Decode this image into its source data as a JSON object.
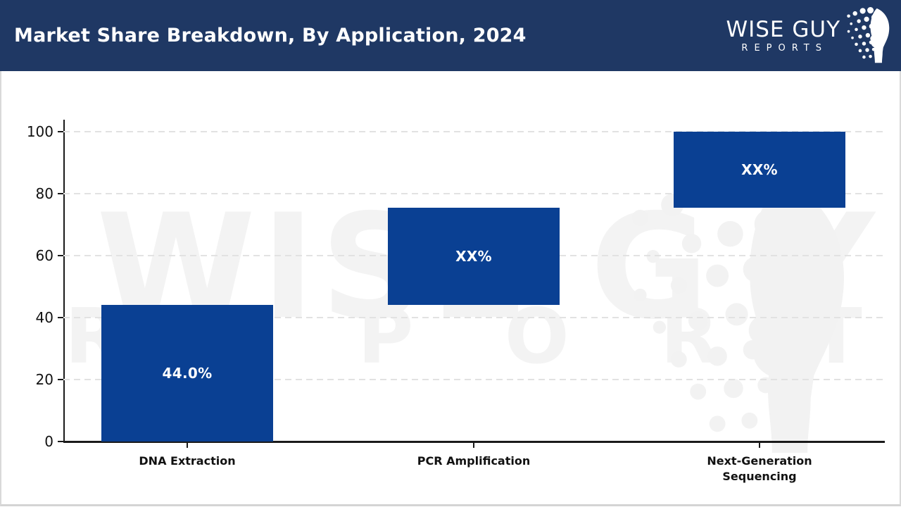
{
  "header": {
    "title": "Market Share Breakdown, By Application, 2024",
    "logo": {
      "name": "WISE GUY",
      "sub": "REPORTS"
    }
  },
  "watermark": {
    "line1": "WISE G Y",
    "line2": "R E P O R T S"
  },
  "chart_data": {
    "type": "bar",
    "subtype": "waterfall",
    "title": "Market Share Breakdown, By Application, 2024",
    "categories": [
      "DNA Extraction",
      "PCR Amplification",
      "Next-Generation\nSequencing"
    ],
    "segments": [
      {
        "category": "DNA Extraction",
        "start": 0,
        "end": 44,
        "value_label": "44.0%"
      },
      {
        "category": "PCR Amplification",
        "start": 44,
        "end": 75.5,
        "value_label": "XX%"
      },
      {
        "category": "Next-Generation Sequencing",
        "start": 75.5,
        "end": 100,
        "value_label": "XX%"
      }
    ],
    "ylim": [
      0,
      100
    ],
    "yticks": [
      0,
      20,
      40,
      60,
      80,
      100
    ],
    "xlabel": "",
    "ylabel": "",
    "grid": "horizontal-dashed",
    "legend": "none",
    "bar_color": "#0a4093",
    "bar_label_color": "#ffffff"
  },
  "colors": {
    "header_bg": "#1f3864",
    "bar": "#0a4093",
    "grid": "#e2e2e2",
    "axis": "#1a1a1a",
    "frame": "#d9d9d9",
    "watermark": "#f3f3f3"
  }
}
